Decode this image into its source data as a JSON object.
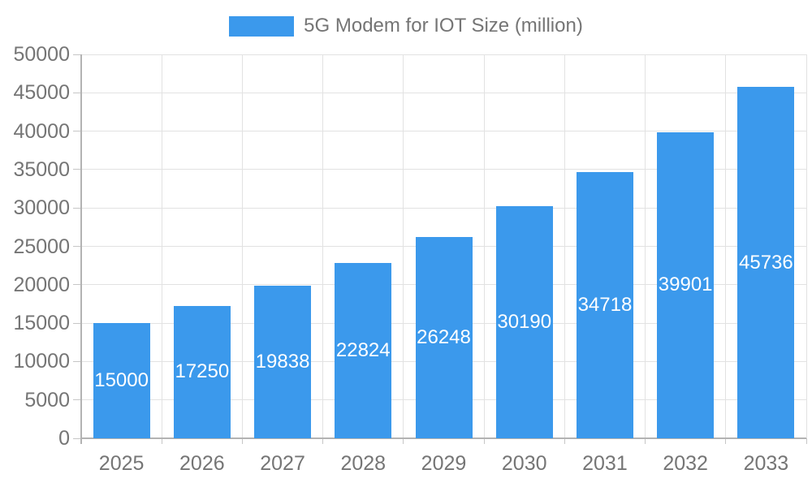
{
  "chart_data": {
    "type": "bar",
    "title": "5G Modem for IOT Size (million)",
    "categories": [
      "2025",
      "2026",
      "2027",
      "2028",
      "2029",
      "2030",
      "2031",
      "2032",
      "2033"
    ],
    "series": [
      {
        "name": "5G Modem for IOT Size (million)",
        "values": [
          15000,
          17250,
          19838,
          22824,
          26248,
          30190,
          34718,
          39901,
          45736
        ]
      }
    ],
    "bar_labels": [
      "15000",
      "17250",
      "19838",
      "22824",
      "26248",
      "30190",
      "34718",
      "39901",
      "45736"
    ],
    "xlabel": "",
    "ylabel": "",
    "ylim": [
      0,
      50000
    ],
    "y_tick_interval": 5000,
    "y_tick_labels": [
      "0",
      "5000",
      "10000",
      "15000",
      "20000",
      "25000",
      "30000",
      "35000",
      "40000",
      "45000",
      "50000"
    ],
    "grid": true,
    "legend_position": "top-center",
    "colors": {
      "bar": "#3b99ec",
      "bar_value_text": "#ffffff",
      "axis_text": "#757575",
      "legend_text": "#757575",
      "grid_line": "#e2e2e2",
      "axis_line": "#b3b3b3",
      "tick_line": "#c6c6c6",
      "background": "#ffffff"
    }
  }
}
